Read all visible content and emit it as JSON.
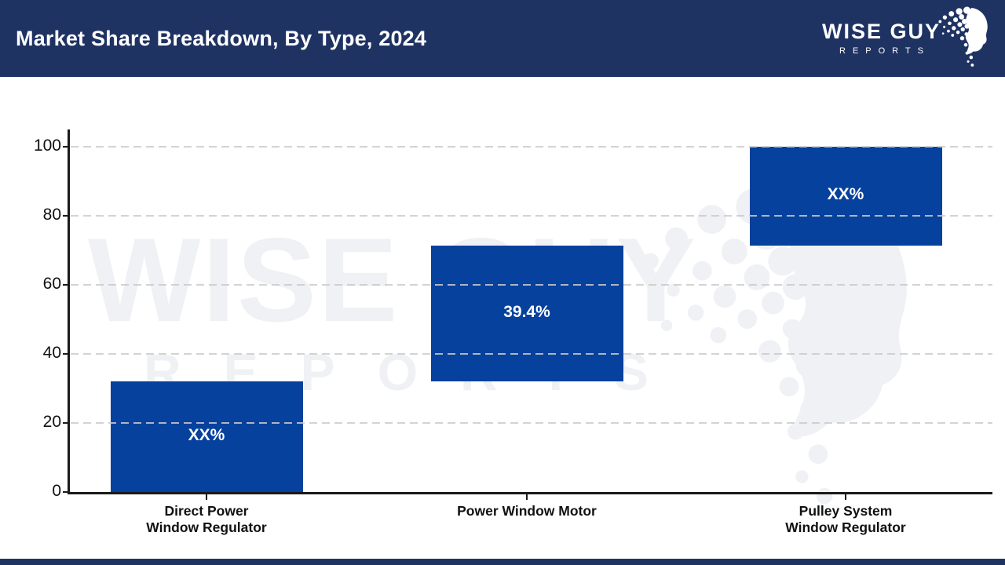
{
  "header": {
    "title": "Market Share Breakdown, By Type, 2024",
    "bg_color": "#1f3363",
    "logo": {
      "name": "WISE GUY",
      "subtext": "REPORTS"
    }
  },
  "watermark": {
    "line1": "WISE GUY",
    "line2": "REPORTS"
  },
  "chart_data": {
    "type": "bar",
    "subtype": "floating-waterfall",
    "title": "Market Share Breakdown, By Type, 2024",
    "xlabel": "",
    "ylabel": "",
    "ylim": [
      0,
      105
    ],
    "yticks": [
      0,
      20,
      40,
      60,
      80,
      100
    ],
    "grid": {
      "style": "dashed",
      "color": "#d6d6d6",
      "drawn_over_bars": true
    },
    "legend": null,
    "bar_color": "#05419d",
    "value_label_color": "#ffffff",
    "axis_color": "#1a1a1a",
    "categories": [
      [
        "Direct Power",
        "Window Regulator"
      ],
      [
        "Power Window Motor"
      ],
      [
        "Pulley System",
        "Window Regulator"
      ]
    ],
    "segments": [
      {
        "category": "Direct Power Window Regulator",
        "start": 0,
        "end": 32,
        "label": "XX%"
      },
      {
        "category": "Power Window Motor",
        "start": 32,
        "end": 71.4,
        "label": "39.4%"
      },
      {
        "category": "Pulley System Window Regulator",
        "start": 71.4,
        "end": 100,
        "label": "XX%"
      }
    ]
  }
}
